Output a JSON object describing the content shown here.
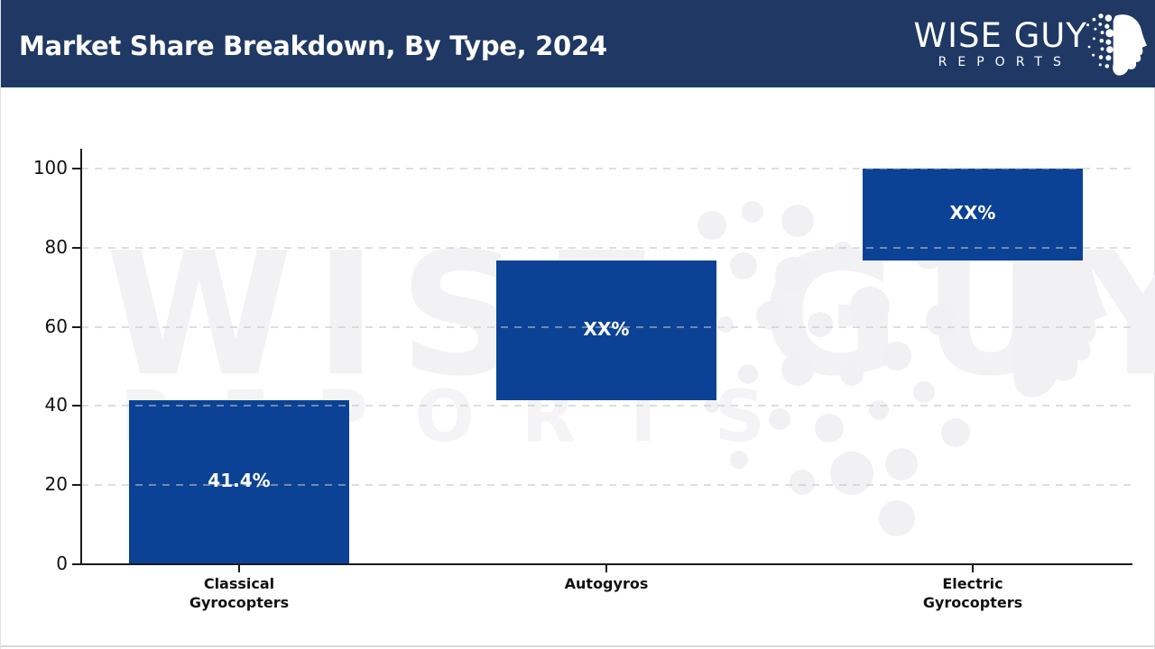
{
  "header": {
    "title": "Market Share Breakdown, By Type, 2024",
    "bg_color": "#1f3864",
    "logo": {
      "wordmark": "WISE GUY",
      "subtext": "REPORTS"
    }
  },
  "watermark": {
    "wordmark": "WISE GUY",
    "subtext": "REPORTS"
  },
  "chart_data": {
    "type": "bar",
    "subtype": "floating-waterfall",
    "title": "Market Share Breakdown, By Type, 2024",
    "categories": [
      "Classical Gyrocopters",
      "Autogyros",
      "Electric Gyrocopters"
    ],
    "segments": [
      {
        "category": "Classical Gyrocopters",
        "start": 0,
        "end": 41.4,
        "label": "41.4%"
      },
      {
        "category": "Autogyros",
        "start": 41.4,
        "end": 76.7,
        "label": "XX%"
      },
      {
        "category": "Electric Gyrocopters",
        "start": 76.7,
        "end": 100,
        "label": "XX%"
      }
    ],
    "ylim": [
      0,
      100
    ],
    "yticks": [
      0,
      20,
      40,
      60,
      80,
      100
    ],
    "grid": "horizontal dashed, drawn over bars",
    "legend": false,
    "bar_color": "#0b4295",
    "value_label_color": "#ffffff",
    "axis_color": "#1a1a1a"
  }
}
